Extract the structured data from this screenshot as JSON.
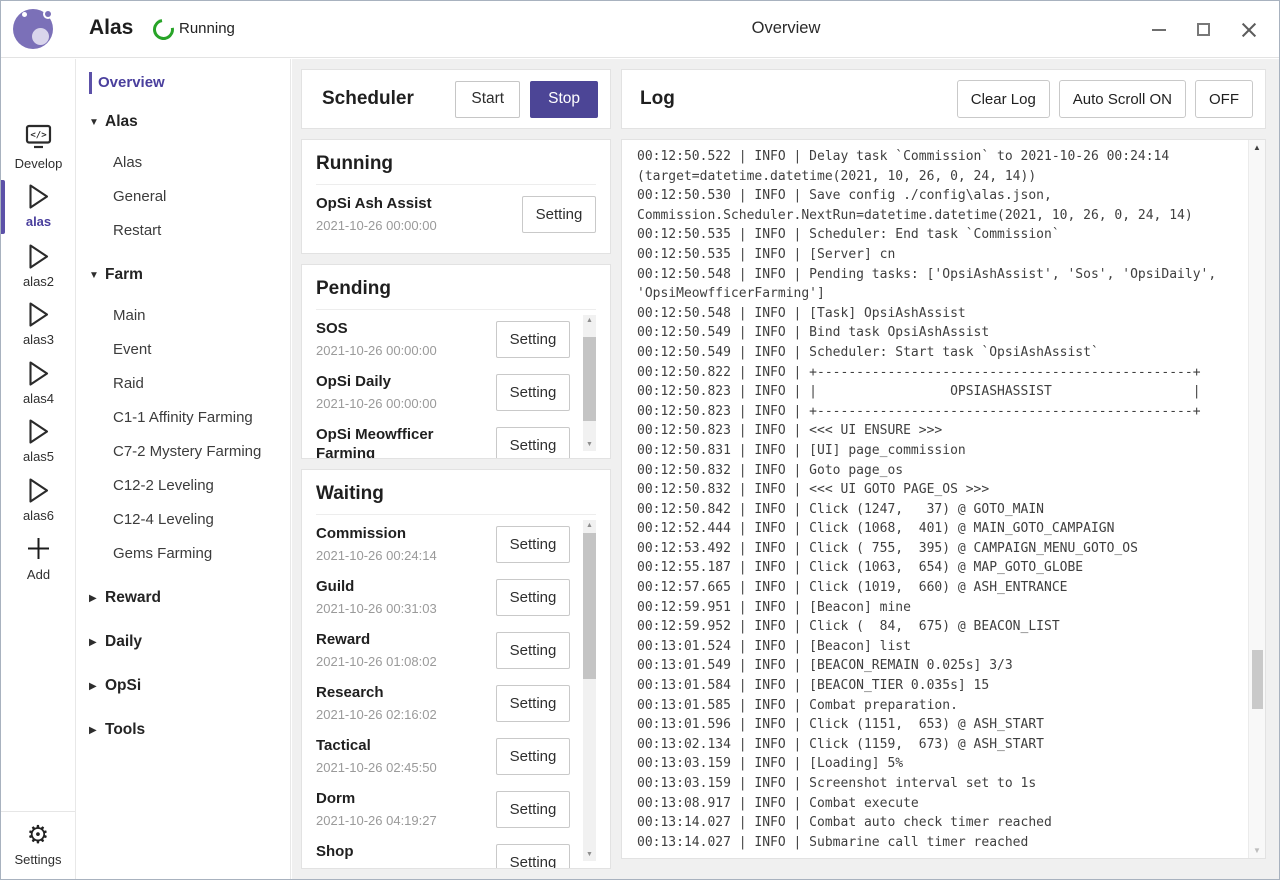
{
  "window": {
    "title": "Overview"
  },
  "topbar": {
    "app_title": "Alas",
    "status_label": "Running"
  },
  "iconbar": {
    "items": [
      {
        "label": "Develop",
        "icon": "develop-icon",
        "active": false
      },
      {
        "label": "alas",
        "icon": "play-icon",
        "active": true
      },
      {
        "label": "alas2",
        "icon": "play-icon",
        "active": false
      },
      {
        "label": "alas3",
        "icon": "play-icon",
        "active": false
      },
      {
        "label": "alas4",
        "icon": "play-icon",
        "active": false
      },
      {
        "label": "alas5",
        "icon": "play-icon",
        "active": false
      },
      {
        "label": "alas6",
        "icon": "play-icon",
        "active": false
      },
      {
        "label": "Add",
        "icon": "add-icon",
        "active": false
      }
    ],
    "settings_label": "Settings"
  },
  "menu": {
    "overview_label": "Overview",
    "groups": [
      {
        "label": "Alas",
        "expanded": true,
        "children": [
          "Alas",
          "General",
          "Restart"
        ]
      },
      {
        "label": "Farm",
        "expanded": true,
        "children": [
          "Main",
          "Event",
          "Raid",
          "C1-1 Affinity Farming",
          "C7-2 Mystery Farming",
          "C12-2 Leveling",
          "C12-4 Leveling",
          "Gems Farming"
        ]
      },
      {
        "label": "Reward",
        "expanded": false,
        "children": []
      },
      {
        "label": "Daily",
        "expanded": false,
        "children": []
      },
      {
        "label": "OpSi",
        "expanded": false,
        "children": []
      },
      {
        "label": "Tools",
        "expanded": false,
        "children": []
      }
    ]
  },
  "scheduler": {
    "title": "Scheduler",
    "start_label": "Start",
    "stop_label": "Stop"
  },
  "panels": {
    "setting_label": "Setting",
    "running": {
      "title": "Running",
      "tasks": [
        {
          "name": "OpSi Ash Assist",
          "time": "2021-10-26 00:00:00"
        }
      ]
    },
    "pending": {
      "title": "Pending",
      "tasks": [
        {
          "name": "SOS",
          "time": "2021-10-26 00:00:00"
        },
        {
          "name": "OpSi Daily",
          "time": "2021-10-26 00:00:00"
        },
        {
          "name": "OpSi Meowfficer Farming",
          "time": ""
        }
      ]
    },
    "waiting": {
      "title": "Waiting",
      "tasks": [
        {
          "name": "Commission",
          "time": "2021-10-26 00:24:14"
        },
        {
          "name": "Guild",
          "time": "2021-10-26 00:31:03"
        },
        {
          "name": "Reward",
          "time": "2021-10-26 01:08:02"
        },
        {
          "name": "Research",
          "time": "2021-10-26 02:16:02"
        },
        {
          "name": "Tactical",
          "time": "2021-10-26 02:45:50"
        },
        {
          "name": "Dorm",
          "time": "2021-10-26 04:19:27"
        },
        {
          "name": "Shop",
          "time": ""
        }
      ]
    }
  },
  "log": {
    "title": "Log",
    "clear_label": "Clear Log",
    "autoscroll_on_label": "Auto Scroll ON",
    "autoscroll_off_label": "OFF",
    "lines": [
      "00:12:50.522 | INFO | Delay task `Commission` to 2021-10-26 00:24:14",
      "(target=datetime.datetime(2021, 10, 26, 0, 24, 14))",
      "00:12:50.530 | INFO | Save config ./config\\alas.json,",
      "Commission.Scheduler.NextRun=datetime.datetime(2021, 10, 26, 0, 24, 14)",
      "00:12:50.535 | INFO | Scheduler: End task `Commission`",
      "00:12:50.535 | INFO | [Server] cn",
      "00:12:50.548 | INFO | Pending tasks: ['OpsiAshAssist', 'Sos', 'OpsiDaily',",
      "'OpsiMeowfficerFarming']",
      "00:12:50.548 | INFO | [Task] OpsiAshAssist",
      "00:12:50.549 | INFO | Bind task OpsiAshAssist",
      "00:12:50.549 | INFO | Scheduler: Start task `OpsiAshAssist`",
      "00:12:50.822 | INFO | +------------------------------------------------+",
      "00:12:50.823 | INFO | |                 OPSIASHASSIST                  |",
      "00:12:50.823 | INFO | +------------------------------------------------+",
      "00:12:50.823 | INFO | <<< UI ENSURE >>>",
      "00:12:50.831 | INFO | [UI] page_commission",
      "00:12:50.832 | INFO | Goto page_os",
      "00:12:50.832 | INFO | <<< UI GOTO PAGE_OS >>>",
      "00:12:50.842 | INFO | Click (1247,   37) @ GOTO_MAIN",
      "00:12:52.444 | INFO | Click (1068,  401) @ MAIN_GOTO_CAMPAIGN",
      "00:12:53.492 | INFO | Click ( 755,  395) @ CAMPAIGN_MENU_GOTO_OS",
      "00:12:55.187 | INFO | Click (1063,  654) @ MAP_GOTO_GLOBE",
      "00:12:57.665 | INFO | Click (1019,  660) @ ASH_ENTRANCE",
      "00:12:59.951 | INFO | [Beacon] mine",
      "00:12:59.952 | INFO | Click (  84,  675) @ BEACON_LIST",
      "00:13:01.524 | INFO | [Beacon] list",
      "00:13:01.549 | INFO | [BEACON_REMAIN 0.025s] 3/3",
      "00:13:01.584 | INFO | [BEACON_TIER 0.035s] 15",
      "00:13:01.585 | INFO | Combat preparation.",
      "00:13:01.596 | INFO | Click (1151,  653) @ ASH_START",
      "00:13:02.134 | INFO | Click (1159,  673) @ ASH_START",
      "00:13:03.159 | INFO | [Loading] 5%",
      "00:13:03.159 | INFO | Screenshot interval set to 1s",
      "00:13:08.917 | INFO | Combat execute",
      "00:13:14.027 | INFO | Combat auto check timer reached",
      "00:13:14.027 | INFO | Submarine call timer reached"
    ]
  },
  "colors": {
    "accent": "#4c4596",
    "active_text": "#4a3f9d",
    "running_green": "#28a428"
  }
}
